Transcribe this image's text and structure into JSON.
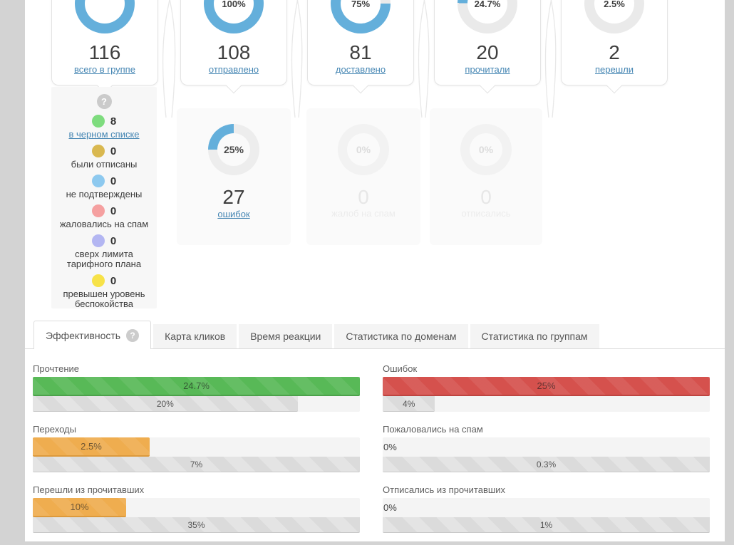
{
  "colors": {
    "accent_blue": "#64AFDB",
    "donut_track": "#EAEAEA",
    "donut_track_disabled": "#F2F2F2",
    "link": "#4586B3",
    "green": "#58B957",
    "green_dark": "#4BA24A",
    "red": "#D5514D",
    "red_dark": "#BE4440",
    "orange": "#EFAD4F",
    "orange_dark": "#DD9A3C"
  },
  "funnel_cards": [
    {
      "value": "116",
      "label": "всего в группе",
      "percent": 100,
      "percent_label": ""
    },
    {
      "value": "108",
      "label": "отправлено",
      "percent": 100,
      "percent_label": "100%"
    },
    {
      "value": "81",
      "label": "доставлено",
      "percent": 75,
      "percent_label": "75%"
    },
    {
      "value": "20",
      "label": "прочитали",
      "percent": 24.7,
      "percent_label": "24.7%"
    },
    {
      "value": "2",
      "label": "перешли",
      "percent": 2.5,
      "percent_label": "2.5%"
    }
  ],
  "legend": {
    "help_icon": "?",
    "items": [
      {
        "count": "8",
        "label": "в черном списке",
        "color": "#7EDC7E",
        "link": true
      },
      {
        "count": "0",
        "label": "были отписаны",
        "color": "#D9B850",
        "link": false
      },
      {
        "count": "0",
        "label": "не подтверждены",
        "color": "#8DC9EF",
        "link": false
      },
      {
        "count": "0",
        "label": "жаловались на спам",
        "color": "#F5A0A0",
        "link": false
      },
      {
        "count": "0",
        "label": "сверх лимита тарифного плана",
        "color": "#B3B6F2",
        "link": false
      },
      {
        "count": "0",
        "label": "превышен уровень беспокойства",
        "color": "#F7E248",
        "link": false
      }
    ]
  },
  "secondary_cards": [
    {
      "value": "27",
      "label": "ошибок",
      "percent": 25,
      "percent_label": "25%",
      "disabled": false,
      "link": true
    },
    {
      "value": "0",
      "label": "жалоб на спам",
      "percent": 0,
      "percent_label": "0%",
      "disabled": true,
      "link": false
    },
    {
      "value": "0",
      "label": "отписались",
      "percent": 0,
      "percent_label": "0%",
      "disabled": true,
      "link": false
    }
  ],
  "tabs": [
    {
      "label": "Эффективность",
      "active": true,
      "help_icon": "?"
    },
    {
      "label": "Карта кликов",
      "active": false
    },
    {
      "label": "Время реакции",
      "active": false
    },
    {
      "label": "Статистика по доменам",
      "active": false
    },
    {
      "label": "Статистика по группам",
      "active": false
    }
  ],
  "chart_data": {
    "type": "bar",
    "title": "Эффективность",
    "note": "colored bar = campaign value, striped gray bar = reference average; pair scaled to its max",
    "columns": [
      [
        {
          "title": "Прочтение",
          "value": 24.7,
          "value_label": "24.7%",
          "average": 20,
          "average_label": "20%",
          "color_key": "green"
        },
        {
          "title": "Переходы",
          "value": 2.5,
          "value_label": "2.5%",
          "average": 7,
          "average_label": "7%",
          "color_key": "orange"
        },
        {
          "title": "Перешли из прочитавших",
          "value": 10,
          "value_label": "10%",
          "average": 35,
          "average_label": "35%",
          "color_key": "orange"
        }
      ],
      [
        {
          "title": "Ошибок",
          "value": 25,
          "value_label": "25%",
          "average": 4,
          "average_label": "4%",
          "color_key": "red"
        },
        {
          "title": "Пожаловались на спам",
          "value": 0,
          "value_label": "0%",
          "average": 0.3,
          "average_label": "0.3%",
          "color_key": "orange"
        },
        {
          "title": "Отписались из прочитавших",
          "value": 0,
          "value_label": "0%",
          "average": 1,
          "average_label": "1%",
          "color_key": "orange"
        }
      ]
    ]
  }
}
